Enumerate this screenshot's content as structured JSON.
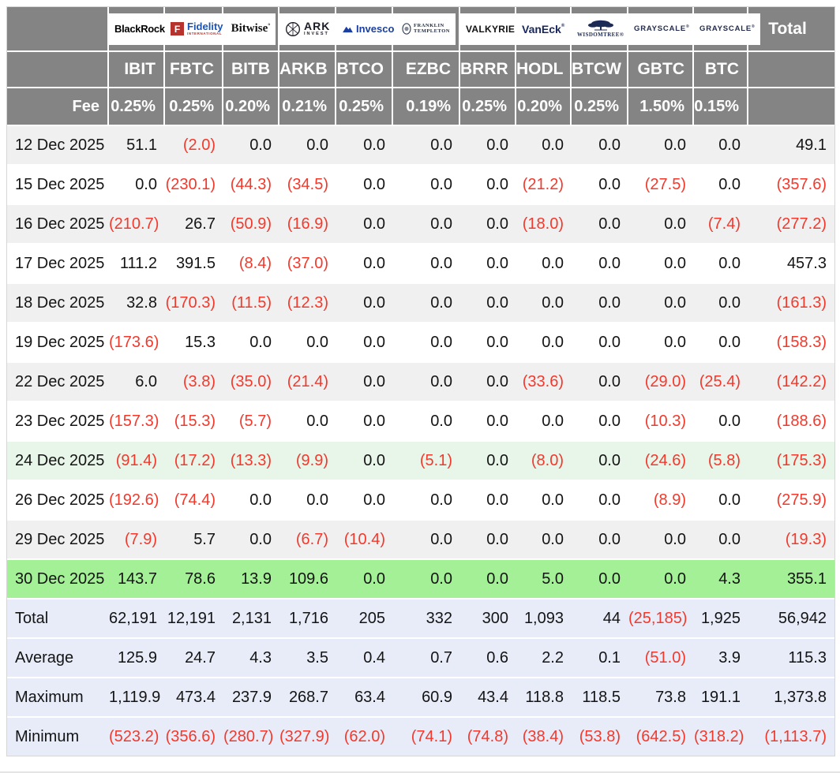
{
  "header": {
    "fee_label": "Fee",
    "total_label": "Total"
  },
  "colors": {
    "header_bg": "#848484",
    "negative_text": "#f2392c",
    "stripe_row": "#f0f0f0",
    "pale_green_row": "#e8f5e9",
    "green_row": "#a3f096",
    "summary_row": "#e7ecf8"
  },
  "providers": [
    {
      "name": "BlackRock",
      "ticker": "IBIT",
      "fee": "0.25%",
      "logo": {
        "text": "BlackRock."
      }
    },
    {
      "name": "Fidelity",
      "ticker": "FBTC",
      "fee": "0.25%",
      "logo": {
        "badge": "F",
        "text": "Fidelity",
        "sub": "INTERNATIONAL"
      }
    },
    {
      "name": "Bitwise",
      "ticker": "BITB",
      "fee": "0.20%",
      "logo": {
        "text": "Bitwise",
        "mark": "°"
      }
    },
    {
      "name": "ARK Invest",
      "ticker": "ARKB",
      "fee": "0.21%",
      "logo": {
        "text": "ARK",
        "sub": "INVEST"
      }
    },
    {
      "name": "Invesco",
      "ticker": "BTCO",
      "fee": "0.25%",
      "logo": {
        "text": "Invesco"
      }
    },
    {
      "name": "Franklin Templeton",
      "ticker": "EZBC",
      "fee": "0.19%",
      "logo": {
        "line1": "FRANKLIN",
        "line2": "TEMPLETON"
      }
    },
    {
      "name": "Valkyrie",
      "ticker": "BRRR",
      "fee": "0.25%",
      "logo": {
        "text": "VALKYRIE"
      }
    },
    {
      "name": "VanEck",
      "ticker": "HODL",
      "fee": "0.20%",
      "logo": {
        "text": "VanEck",
        "mark": "®"
      }
    },
    {
      "name": "WisdomTree",
      "ticker": "BTCW",
      "fee": "0.25%",
      "logo": {
        "text": "WISDOMTREE",
        "mark": "®"
      }
    },
    {
      "name": "Grayscale",
      "ticker": "GBTC",
      "fee": "1.50%",
      "logo": {
        "text": "GRAYSCALE",
        "mark": "®"
      }
    },
    {
      "name": "Grayscale",
      "ticker": "BTC",
      "fee": "0.15%",
      "logo": {
        "text": "GRAYSCALE",
        "mark": "®"
      }
    }
  ],
  "rows": [
    {
      "date": "12 Dec 2025",
      "bg": "stripe",
      "values": [
        "51.1",
        "(2.0)",
        "0.0",
        "0.0",
        "0.0",
        "0.0",
        "0.0",
        "0.0",
        "0.0",
        "0.0",
        "0.0",
        "49.1"
      ]
    },
    {
      "date": "15 Dec 2025",
      "bg": "plain",
      "values": [
        "0.0",
        "(230.1)",
        "(44.3)",
        "(34.5)",
        "0.0",
        "0.0",
        "0.0",
        "(21.2)",
        "0.0",
        "(27.5)",
        "0.0",
        "(357.6)"
      ]
    },
    {
      "date": "16 Dec 2025",
      "bg": "stripe",
      "values": [
        "(210.7)",
        "26.7",
        "(50.9)",
        "(16.9)",
        "0.0",
        "0.0",
        "0.0",
        "(18.0)",
        "0.0",
        "0.0",
        "(7.4)",
        "(277.2)"
      ]
    },
    {
      "date": "17 Dec 2025",
      "bg": "plain",
      "values": [
        "111.2",
        "391.5",
        "(8.4)",
        "(37.0)",
        "0.0",
        "0.0",
        "0.0",
        "0.0",
        "0.0",
        "0.0",
        "0.0",
        "457.3"
      ]
    },
    {
      "date": "18 Dec 2025",
      "bg": "stripe",
      "values": [
        "32.8",
        "(170.3)",
        "(11.5)",
        "(12.3)",
        "0.0",
        "0.0",
        "0.0",
        "0.0",
        "0.0",
        "0.0",
        "0.0",
        "(161.3)"
      ]
    },
    {
      "date": "19 Dec 2025",
      "bg": "plain",
      "values": [
        "(173.6)",
        "15.3",
        "0.0",
        "0.0",
        "0.0",
        "0.0",
        "0.0",
        "0.0",
        "0.0",
        "0.0",
        "0.0",
        "(158.3)"
      ]
    },
    {
      "date": "22 Dec 2025",
      "bg": "stripe",
      "values": [
        "6.0",
        "(3.8)",
        "(35.0)",
        "(21.4)",
        "0.0",
        "0.0",
        "0.0",
        "(33.6)",
        "0.0",
        "(29.0)",
        "(25.4)",
        "(142.2)"
      ]
    },
    {
      "date": "23 Dec 2025",
      "bg": "plain",
      "values": [
        "(157.3)",
        "(15.3)",
        "(5.7)",
        "0.0",
        "0.0",
        "0.0",
        "0.0",
        "0.0",
        "0.0",
        "(10.3)",
        "0.0",
        "(188.6)"
      ]
    },
    {
      "date": "24 Dec 2025",
      "bg": "palegreen",
      "values": [
        "(91.4)",
        "(17.2)",
        "(13.3)",
        "(9.9)",
        "0.0",
        "(5.1)",
        "0.0",
        "(8.0)",
        "0.0",
        "(24.6)",
        "(5.8)",
        "(175.3)"
      ]
    },
    {
      "date": "26 Dec 2025",
      "bg": "plain",
      "values": [
        "(192.6)",
        "(74.4)",
        "0.0",
        "0.0",
        "0.0",
        "0.0",
        "0.0",
        "0.0",
        "0.0",
        "(8.9)",
        "0.0",
        "(275.9)"
      ]
    },
    {
      "date": "29 Dec 2025",
      "bg": "stripe",
      "values": [
        "(7.9)",
        "5.7",
        "0.0",
        "(6.7)",
        "(10.4)",
        "0.0",
        "0.0",
        "0.0",
        "0.0",
        "0.0",
        "0.0",
        "(19.3)"
      ]
    },
    {
      "date": "30 Dec 2025",
      "bg": "green",
      "values": [
        "143.7",
        "78.6",
        "13.9",
        "109.6",
        "0.0",
        "0.0",
        "0.0",
        "5.0",
        "0.0",
        "0.0",
        "4.3",
        "355.1"
      ]
    }
  ],
  "summary": [
    {
      "label": "Total",
      "bg": "summary",
      "values": [
        "62,191",
        "12,191",
        "2,131",
        "1,716",
        "205",
        "332",
        "300",
        "1,093",
        "44",
        "(25,185)",
        "1,925",
        "56,942"
      ]
    },
    {
      "label": "Average",
      "bg": "summary",
      "values": [
        "125.9",
        "24.7",
        "4.3",
        "3.5",
        "0.4",
        "0.7",
        "0.6",
        "2.2",
        "0.1",
        "(51.0)",
        "3.9",
        "115.3"
      ]
    },
    {
      "label": "Maximum",
      "bg": "summary",
      "values": [
        "1,119.9",
        "473.4",
        "237.9",
        "268.7",
        "63.4",
        "60.9",
        "43.4",
        "118.8",
        "118.5",
        "73.8",
        "191.1",
        "1,373.8"
      ]
    },
    {
      "label": "Minimum",
      "bg": "summary",
      "values": [
        "(523.2)",
        "(356.6)",
        "(280.7)",
        "(327.9)",
        "(62.0)",
        "(74.1)",
        "(74.8)",
        "(38.4)",
        "(53.8)",
        "(642.5)",
        "(318.2)",
        "(1,113.7)"
      ]
    }
  ]
}
